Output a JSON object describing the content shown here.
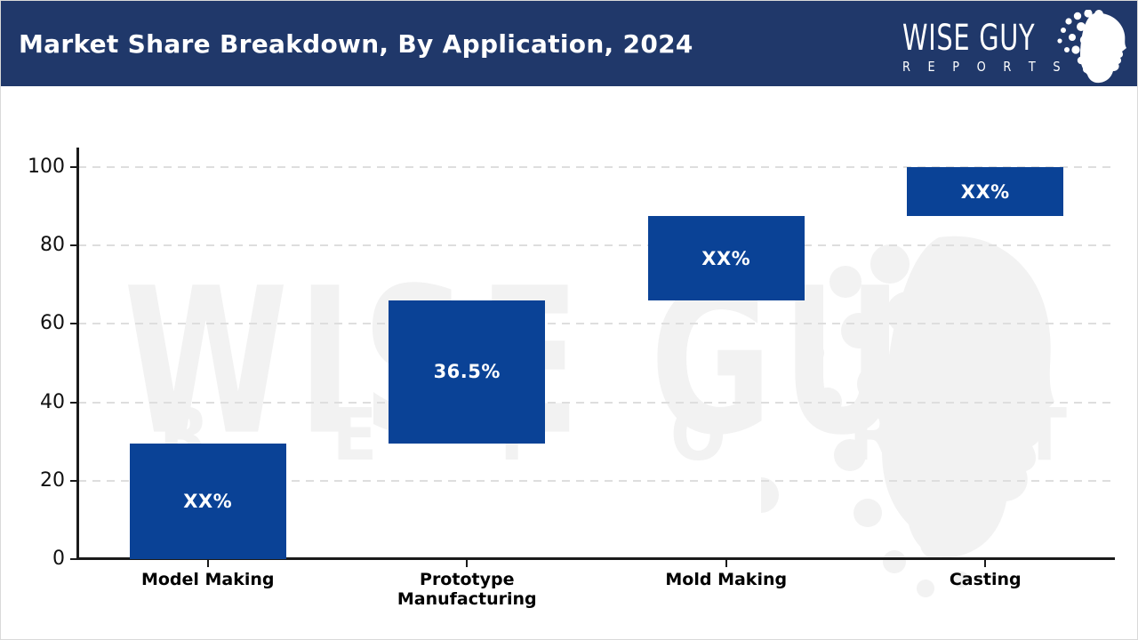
{
  "header": {
    "title": "Market Share Breakdown, By Application, 2024",
    "logo": {
      "line1": "WISE GUY",
      "line2": "R E P O R T S",
      "face_icon": "head-profile-dots"
    }
  },
  "watermark": {
    "line1": "WISE GUY",
    "line2": "R E P O R T S",
    "face_icon": "head-profile-dots"
  },
  "colors": {
    "header_bg": "#20386a",
    "bar": "#0a4296",
    "bar_label": "#ffffff",
    "grid": "#dedede",
    "axis": "#1a1a1a",
    "watermark": "#f2f2f2"
  },
  "chart_data": {
    "type": "bar",
    "subtype": "stacked-waterfall",
    "title": "Market Share Breakdown, By Application, 2024",
    "categories": [
      "Model Making",
      "Prototype Manufacturing",
      "Mold Making",
      "Casting"
    ],
    "bars": [
      {
        "category": "Model Making",
        "start": 0,
        "end": 29.5,
        "value": 29.5,
        "label": "XX%"
      },
      {
        "category": "Prototype Manufacturing",
        "start": 29.5,
        "end": 66,
        "value": 36.5,
        "label": "36.5%"
      },
      {
        "category": "Mold Making",
        "start": 66,
        "end": 87.5,
        "value": 21.5,
        "label": "XX%"
      },
      {
        "category": "Casting",
        "start": 87.5,
        "end": 100,
        "value": 12.5,
        "label": "XX%"
      }
    ],
    "xlabel": "",
    "ylabel": "",
    "ylim": [
      0,
      100
    ],
    "yticks": [
      0,
      20,
      40,
      60,
      80,
      100
    ],
    "grid": true,
    "legend": false
  }
}
